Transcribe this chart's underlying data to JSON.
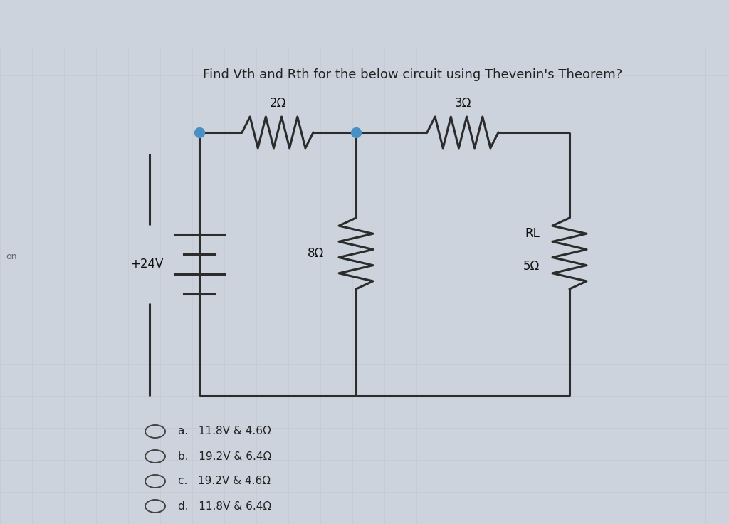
{
  "title": "Find Vth and Rth for the below circuit using Thevenin's Theorem?",
  "title_fontsize": 13,
  "bg_top_color": "#c0392b",
  "bg_bottom_color": "#cdd3dc",
  "card_color": "#dce3ea",
  "wire_color": "#2c2c2c",
  "node_color": "#4a90c4",
  "resistor_2ohm_label": "2Ω",
  "resistor_3ohm_label": "3Ω",
  "resistor_8ohm_label": "8Ω",
  "resistor_RL_label": "RL",
  "resistor_5ohm_label": "5Ω",
  "voltage_label": "+24V",
  "on_label": "on",
  "choices": [
    "a.   11.8V & 4.6Ω",
    "b.   19.2V & 6.4Ω",
    "c.   19.2V & 4.6Ω",
    "d.   11.8V & 6.4Ω"
  ],
  "grid_color": "#b8c0cc",
  "grid_alpha": 0.5
}
